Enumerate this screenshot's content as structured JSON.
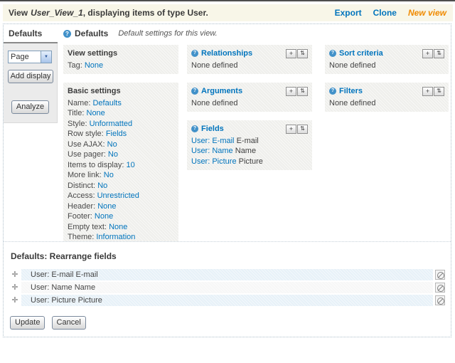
{
  "top_bar": {
    "title_prefix": "View",
    "view_name": "User_View_1",
    "title_suffix": ", displaying items of type User.",
    "actions": [
      {
        "label": "Export"
      },
      {
        "label": "Clone"
      },
      {
        "label": "New view"
      }
    ]
  },
  "sidebar": {
    "tab_label": "Defaults",
    "display_select_value": "Page",
    "add_display_button": "Add display",
    "analyze_button": "Analyze"
  },
  "display_header": {
    "title": "Defaults",
    "description": "Default settings for this view."
  },
  "view_settings": {
    "title": "View settings",
    "row": {
      "label": "Tag:",
      "value": "None"
    }
  },
  "basic_settings": {
    "title": "Basic settings",
    "rows": [
      {
        "label": "Name:",
        "value": "Defaults"
      },
      {
        "label": "Title:",
        "value": "None"
      },
      {
        "label": "Style:",
        "value": "Unformatted"
      },
      {
        "label": "Row style:",
        "value": "Fields"
      },
      {
        "label": "Use AJAX:",
        "value": "No"
      },
      {
        "label": "Use pager:",
        "value": "No"
      },
      {
        "label": "Items to display:",
        "value": "10"
      },
      {
        "label": "More link:",
        "value": "No"
      },
      {
        "label": "Distinct:",
        "value": "No"
      },
      {
        "label": "Access:",
        "value": "Unrestricted"
      },
      {
        "label": "Header:",
        "value": "None"
      },
      {
        "label": "Footer:",
        "value": "None"
      },
      {
        "label": "Empty text:",
        "value": "None"
      },
      {
        "label": "Theme:",
        "value": "Information"
      }
    ]
  },
  "relationships": {
    "title": "Relationships",
    "empty": "None defined"
  },
  "arguments": {
    "title": "Arguments",
    "empty": "None defined"
  },
  "fields": {
    "title": "Fields",
    "items": [
      {
        "link": "User: E-mail",
        "label": "E-mail"
      },
      {
        "link": "User: Name",
        "label": "Name"
      },
      {
        "link": "User: Picture",
        "label": "Picture"
      }
    ]
  },
  "sort_criteria": {
    "title": "Sort criteria",
    "empty": "None defined"
  },
  "filters": {
    "title": "Filters",
    "empty": "None defined"
  },
  "rearrange": {
    "title": "Defaults: Rearrange fields",
    "rows": [
      {
        "label": "User: E-mail E-mail"
      },
      {
        "label": "User: Name Name"
      },
      {
        "label": "User: Picture Picture"
      }
    ],
    "update_button": "Update",
    "cancel_button": "Cancel"
  },
  "icons": {
    "help_glyph": "?",
    "add_glyph": "+",
    "rearrange_glyph": "⇅",
    "drag_glyph": "✛",
    "select_arrow_glyph": "▼"
  },
  "colors": {
    "link_blue": "#0074bd",
    "new_view_orange": "#f08a00",
    "top_bar_bg": "#f8f6e8",
    "row_highlight_blue": "#e7f1f8",
    "help_icon_blue": "#4191c9"
  }
}
